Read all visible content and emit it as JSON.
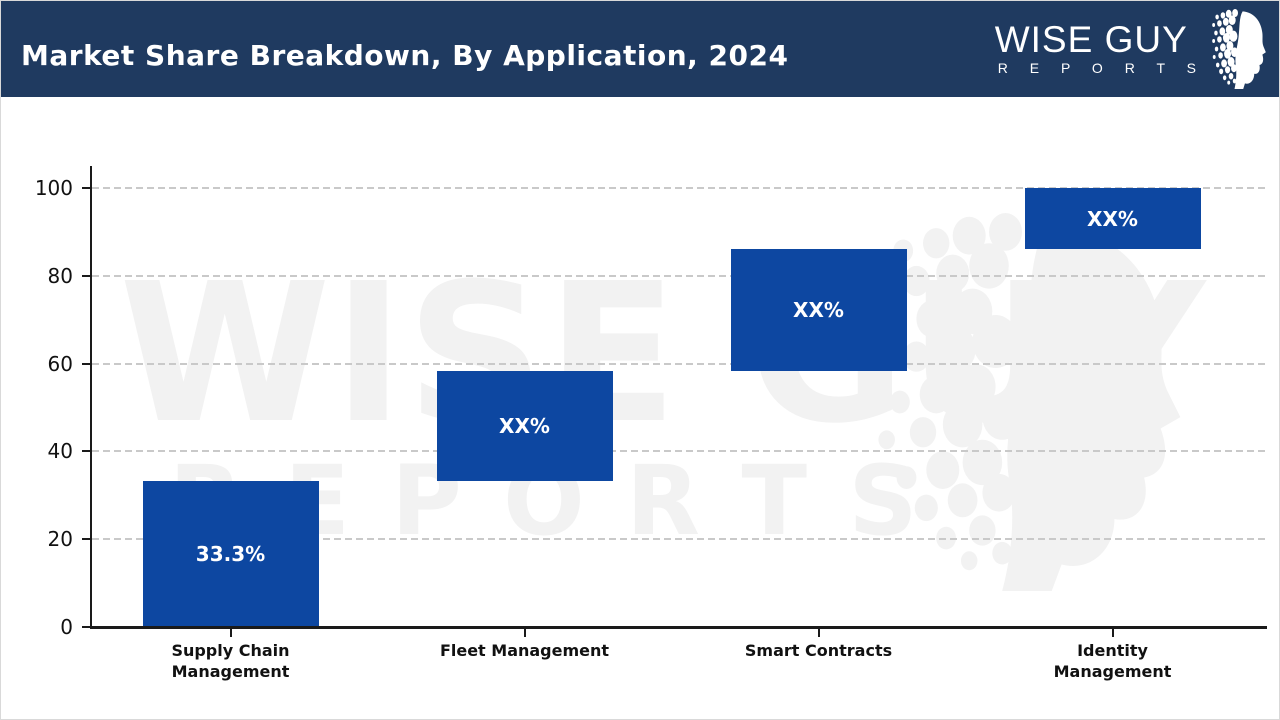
{
  "header": {
    "title": "Market Share Breakdown, By Application, 2024",
    "logo": {
      "wordmark": "WISE GUY",
      "subtext": "R E P O R T S"
    }
  },
  "watermark": {
    "wordmark": "WISE GUY",
    "subtext": "R E P O R T S"
  },
  "colors": {
    "header_bg": "#1f3a60",
    "bar": "#0d47a1",
    "bar_label": "#ffffff",
    "axis": "#1a1a1a",
    "grid": "#c9c9c9",
    "watermark": "#f2f2f2"
  },
  "chart_data": {
    "type": "bar",
    "variant": "waterfall",
    "title": "Market Share Breakdown, By Application, 2024",
    "categories": [
      "Supply Chain Management",
      "Fleet Management",
      "Smart Contracts",
      "Identity Management"
    ],
    "category_label_lines": [
      [
        "Supply Chain",
        "Management"
      ],
      [
        "Fleet Management"
      ],
      [
        "Smart Contracts"
      ],
      [
        "Identity",
        "Management"
      ]
    ],
    "segments": [
      {
        "category": "Supply Chain Management",
        "from": 0,
        "to": 33.3,
        "value": 33.3,
        "label": "33.3%"
      },
      {
        "category": "Fleet Management",
        "from": 33.3,
        "to": 58.3,
        "value": 25.0,
        "label": "XX%"
      },
      {
        "category": "Smart Contracts",
        "from": 58.3,
        "to": 86.1,
        "value": 27.8,
        "label": "XX%"
      },
      {
        "category": "Identity Management",
        "from": 86.1,
        "to": 100,
        "value": 13.9,
        "label": "XX%"
      }
    ],
    "xlabel": "",
    "ylabel": "",
    "ylim": [
      0,
      100
    ],
    "yticks": [
      0,
      20,
      40,
      60,
      80,
      100
    ],
    "grid": "horizontal-dashed",
    "legend": "none"
  }
}
